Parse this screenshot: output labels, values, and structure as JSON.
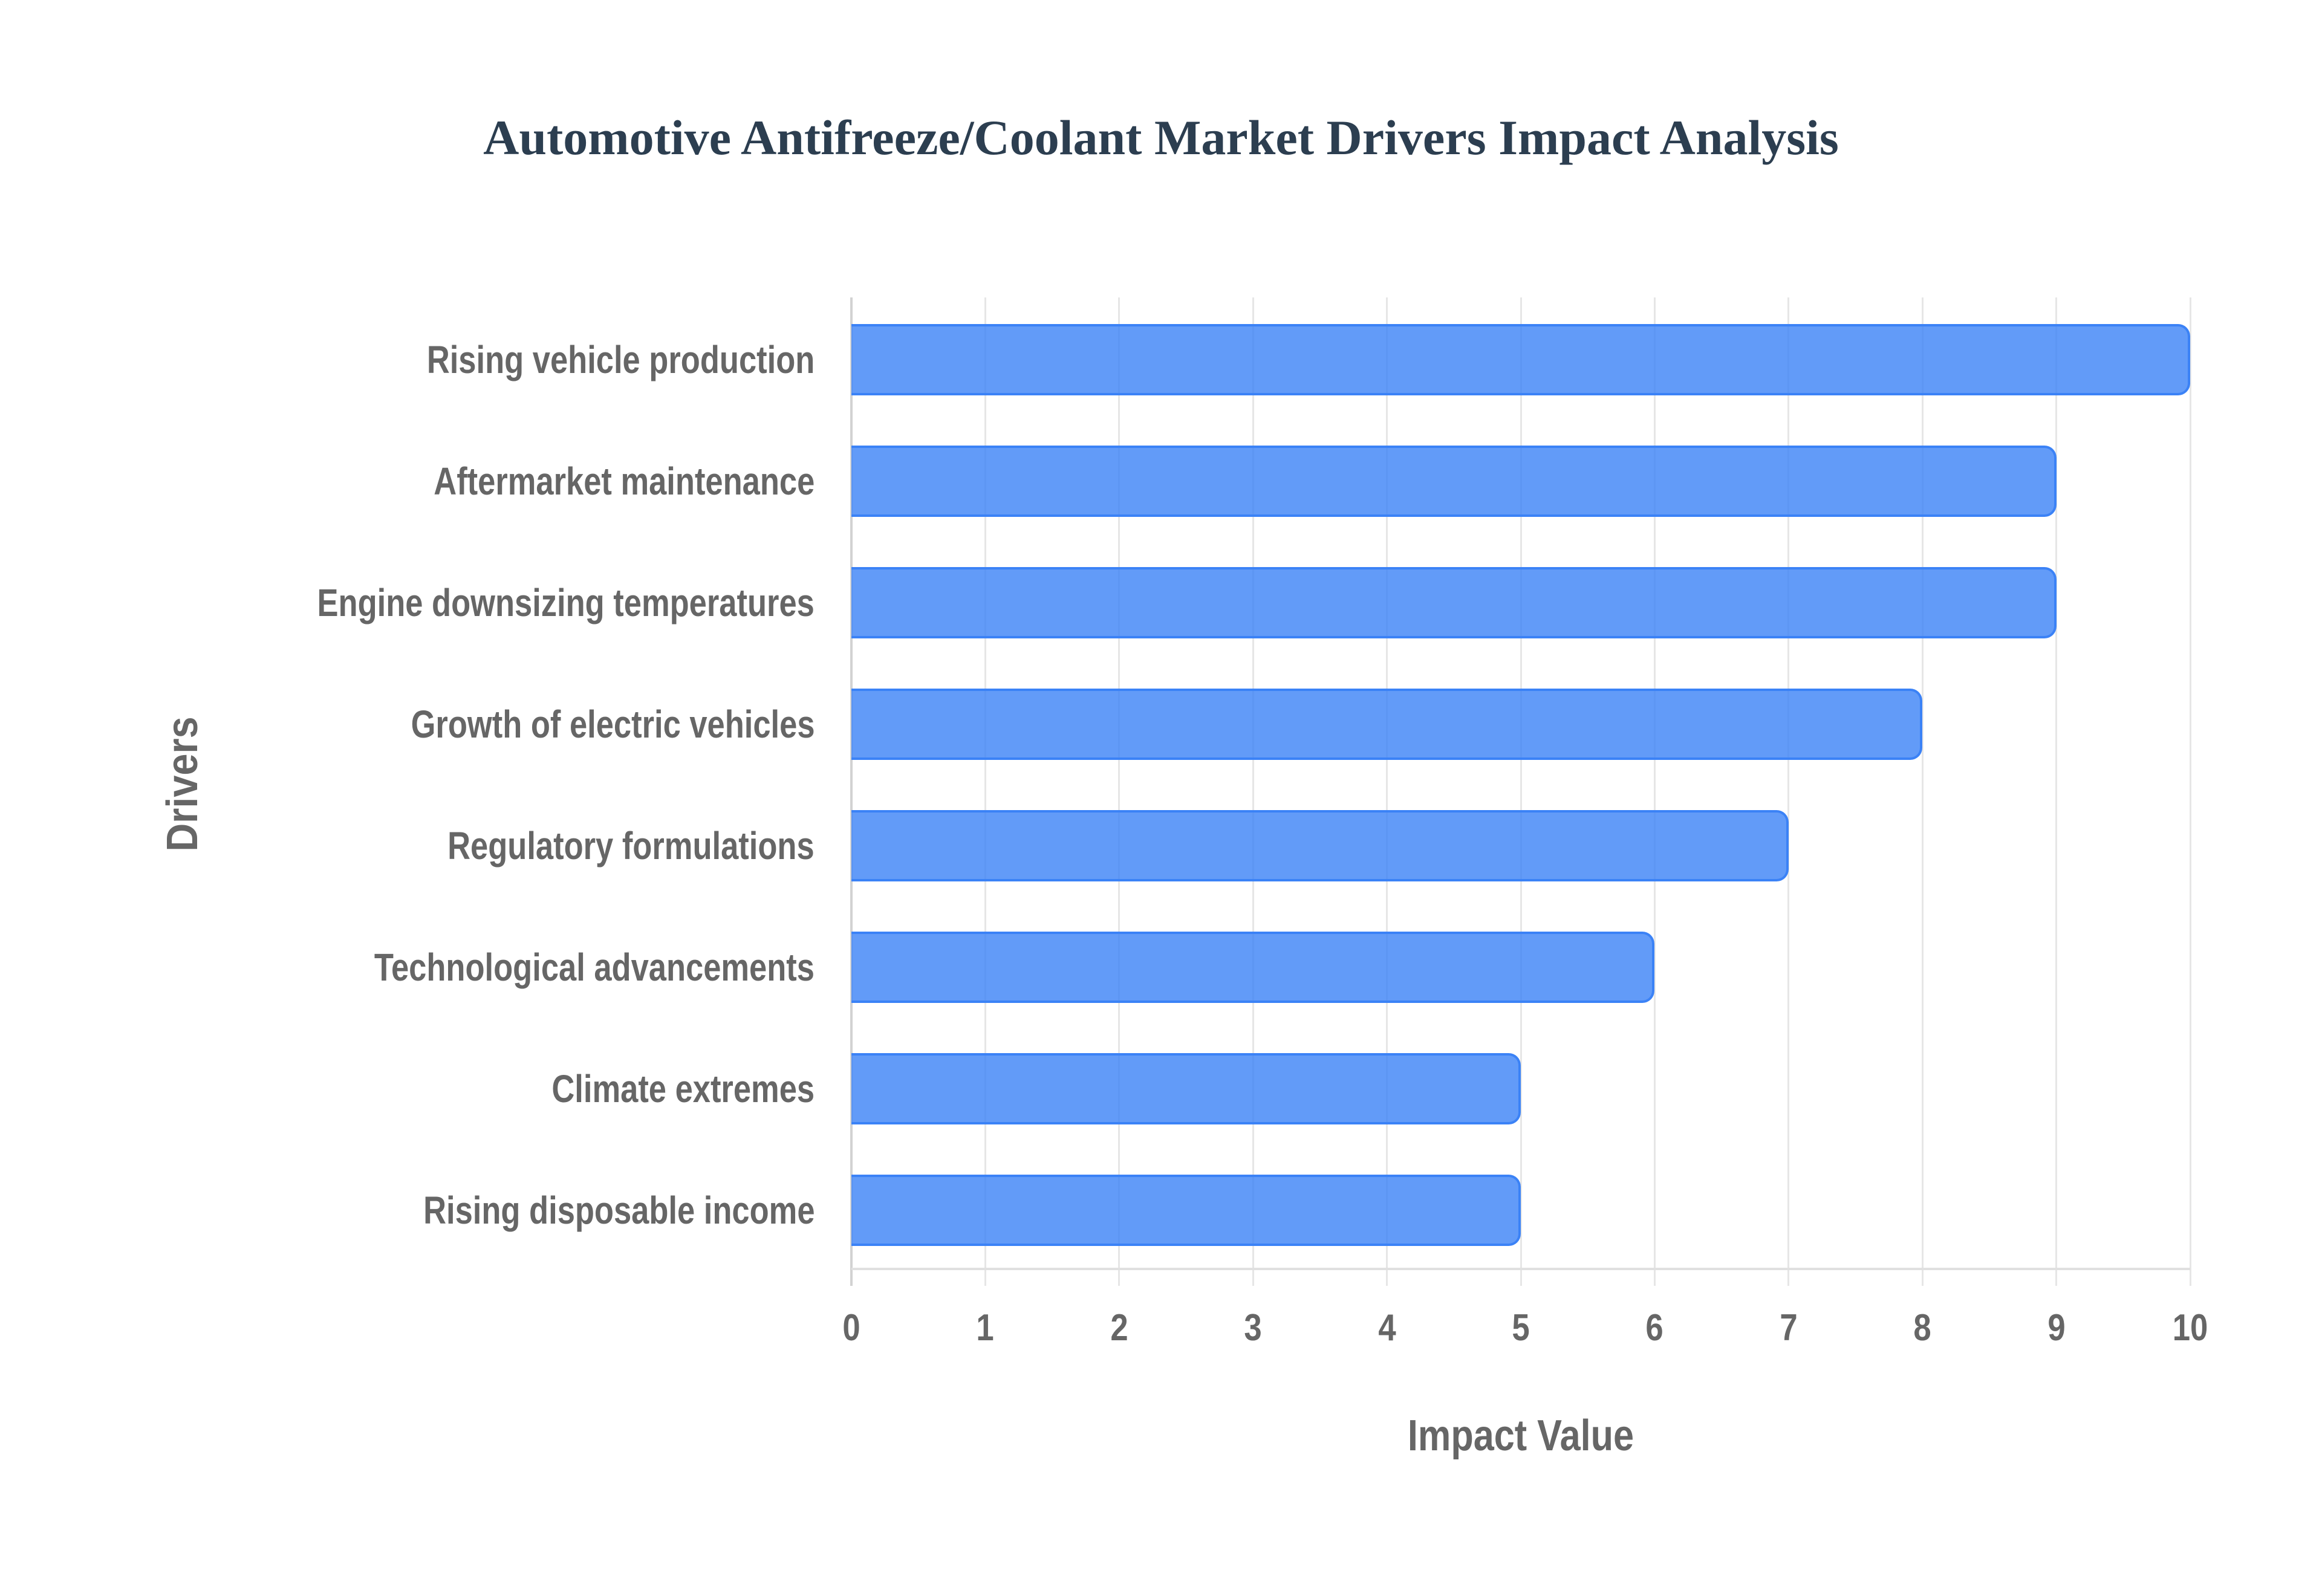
{
  "chart": {
    "title": "Automotive Antifreeze/Coolant Market Drivers Impact Analysis",
    "x_axis_title": "Impact Value",
    "y_axis_title": "Drivers",
    "x_ticks": [
      "0",
      "1",
      "2",
      "3",
      "4",
      "5",
      "6",
      "7",
      "8",
      "9",
      "10"
    ],
    "bar_fill_color": "#3b82f6cc",
    "bar_border_color": "#3b82f6",
    "title_color": "#2c3e50",
    "label_color": "#666666",
    "categories": [
      {
        "label": "Rising vehicle production",
        "value": 10
      },
      {
        "label": "Aftermarket maintenance",
        "value": 9
      },
      {
        "label": "Engine downsizing temperatures",
        "value": 9
      },
      {
        "label": "Growth of electric vehicles",
        "value": 8
      },
      {
        "label": "Regulatory formulations",
        "value": 7
      },
      {
        "label": "Technological advancements",
        "value": 6
      },
      {
        "label": "Climate extremes",
        "value": 5
      },
      {
        "label": "Rising disposable income",
        "value": 5
      }
    ]
  },
  "chart_data": {
    "type": "bar",
    "orientation": "horizontal",
    "title": "Automotive Antifreeze/Coolant Market Drivers Impact Analysis",
    "xlabel": "Impact Value",
    "ylabel": "Drivers",
    "categories": [
      "Rising vehicle production",
      "Aftermarket maintenance",
      "Engine downsizing temperatures",
      "Growth of electric vehicles",
      "Regulatory formulations",
      "Technological advancements",
      "Climate extremes",
      "Rising disposable income"
    ],
    "values": [
      10,
      9,
      9,
      8,
      7,
      6,
      5,
      5
    ],
    "xlim": [
      0,
      10
    ],
    "x_ticks": [
      0,
      1,
      2,
      3,
      4,
      5,
      6,
      7,
      8,
      9,
      10
    ],
    "grid": {
      "vertical": true,
      "horizontal": false
    },
    "legend": null,
    "colors": {
      "bar_fill": "#3b82f6cc",
      "bar_border": "#3b82f6"
    }
  }
}
